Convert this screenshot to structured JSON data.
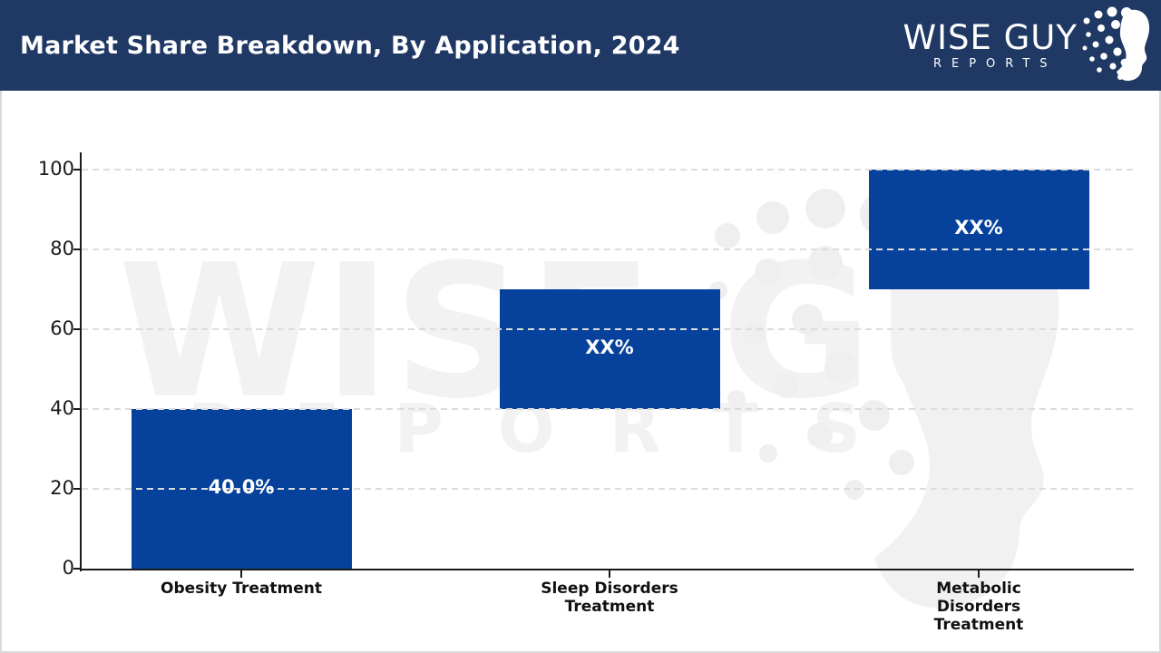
{
  "header": {
    "title": "Market Share Breakdown, By Application, 2024",
    "bg_color": "#1f3864",
    "logo": {
      "line1": "WISE GUY",
      "line2": "REPORTS"
    }
  },
  "watermark": {
    "line1": "WISE GU",
    "line2": "REPORTS"
  },
  "chart_data": {
    "type": "bar",
    "variant": "floating-segment-bars",
    "title": "Market Share Breakdown, By Application, 2024",
    "categories": [
      "Obesity Treatment",
      "Sleep Disorders\nTreatment",
      "Metabolic\nDisorders\nTreatment"
    ],
    "bars": [
      {
        "category": "Obesity Treatment",
        "start": 0,
        "end": 40,
        "label": "40.0%"
      },
      {
        "category": "Sleep Disorders Treatment",
        "start": 40,
        "end": 70,
        "label": "XX%"
      },
      {
        "category": "Metabolic Disorders Treatment",
        "start": 70,
        "end": 100,
        "label": "XX%"
      }
    ],
    "xlabel": "",
    "ylabel": "",
    "yticks": [
      0,
      20,
      40,
      60,
      80,
      100
    ],
    "ylim": [
      0,
      105
    ],
    "grid": "horizontal-dashed",
    "legend": "none",
    "bar_color": "#06429b",
    "grid_color": "#dcdcdc",
    "axis_color": "#1a1a1a"
  }
}
